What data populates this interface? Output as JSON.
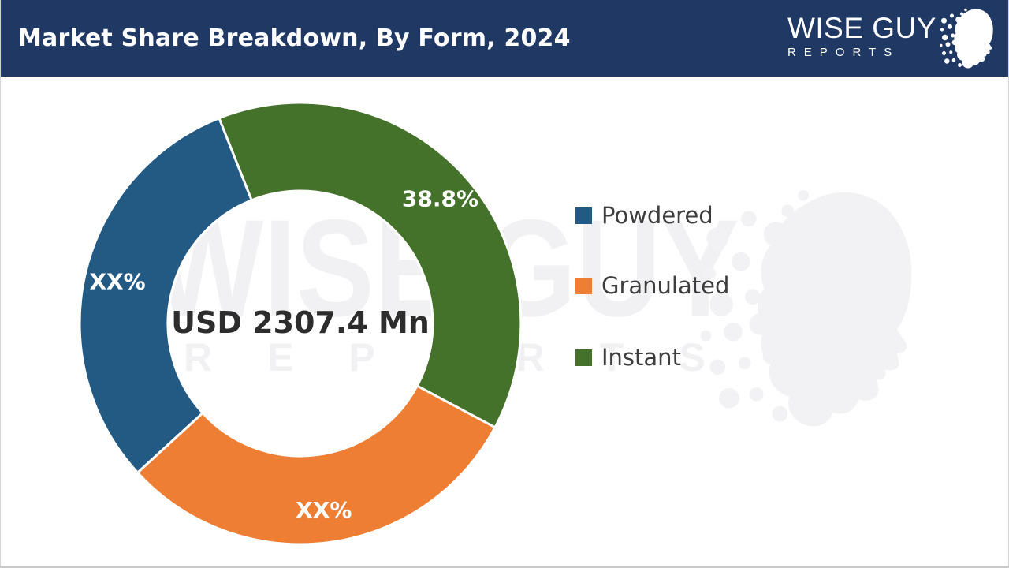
{
  "header": {
    "title": "Market Share Breakdown, By Form, 2024",
    "background_color": "#1F3864",
    "logo": {
      "line1": "WISE GUY",
      "line2": "REPORTS"
    }
  },
  "watermark": {
    "line1": "WISE GUY",
    "line2": "REPORTS"
  },
  "chart_data": {
    "type": "pie",
    "donut": true,
    "title": "Market Share Breakdown, By Form, 2024",
    "center_label": "USD 2307.4 Mn",
    "legend_position": "right",
    "start_angle_deg": -21.6,
    "outer_radius_px": 280,
    "inner_radius_px": 168,
    "segments": [
      {
        "label": "Powdered",
        "display_value": "XX%",
        "est_pct": 30.8,
        "color": "#235A84"
      },
      {
        "label": "Granulated",
        "display_value": "XX%",
        "est_pct": 30.4,
        "color": "#ED7E33"
      },
      {
        "label": "Instant",
        "display_value": "38.8%",
        "est_pct": 38.8,
        "color": "#45722A"
      }
    ]
  },
  "colors": {
    "header_navy": "#1F3864",
    "slice_label_text": "#ffffff",
    "center_label_text": "#2d2d2d",
    "legend_text": "#3d3d3d",
    "watermark": "#f1f1f3"
  }
}
